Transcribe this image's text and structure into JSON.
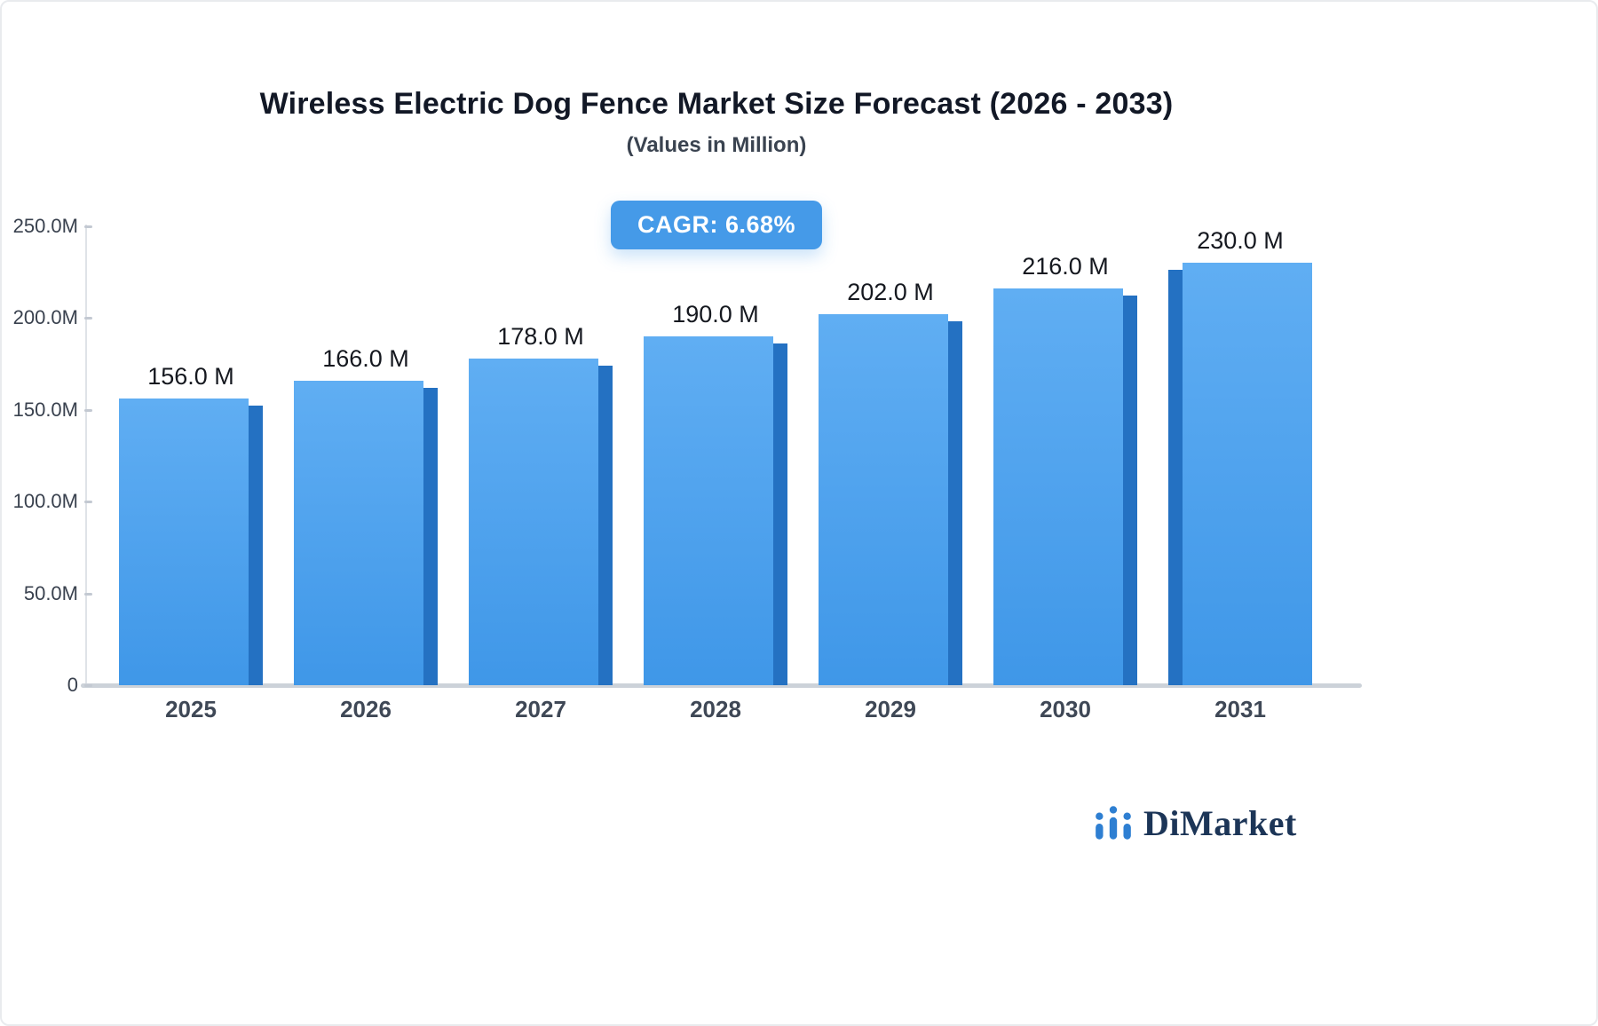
{
  "chart": {
    "title": "Wireless Electric Dog Fence Market Size Forecast (2026 - 2033)",
    "subtitle": "(Values in Million)",
    "cagr_label": "CAGR: 6.68%"
  },
  "chart_data": {
    "type": "bar",
    "title": "Wireless Electric Dog Fence Market Size Forecast (2026 - 2033)",
    "subtitle": "(Values in Million)",
    "categories": [
      "2025",
      "2026",
      "2027",
      "2028",
      "2029",
      "2030",
      "2031"
    ],
    "values": [
      156,
      166,
      178,
      190,
      202,
      216,
      230
    ],
    "value_labels": [
      "156.0 M",
      "166.0 M",
      "178.0 M",
      "190.0 M",
      "202.0 M",
      "216.0 M",
      "230.0 M"
    ],
    "unit": "Million",
    "cagr": "6.68%",
    "ylim": [
      0,
      250
    ],
    "y_ticks": [
      {
        "label": "0",
        "value": 0
      },
      {
        "label": "50.0M",
        "value": 50
      },
      {
        "label": "100.0M",
        "value": 100
      },
      {
        "label": "150.0M",
        "value": 150
      },
      {
        "label": "200.0M",
        "value": 200
      },
      {
        "label": "250.0M",
        "value": 250
      }
    ],
    "grid": false,
    "legend_position": "none",
    "bar_gradient": [
      "#60AEF3",
      "#3F97E8"
    ],
    "bar_side_color": "#2471C2"
  },
  "branding": {
    "logo_text": "DiMarket"
  },
  "colors": {
    "accent": "#429BEA",
    "badge_bg": "#459AE8",
    "title_color": "#121826",
    "logo_color": "#1C3557",
    "logo_icon": "#2E7FD2"
  }
}
